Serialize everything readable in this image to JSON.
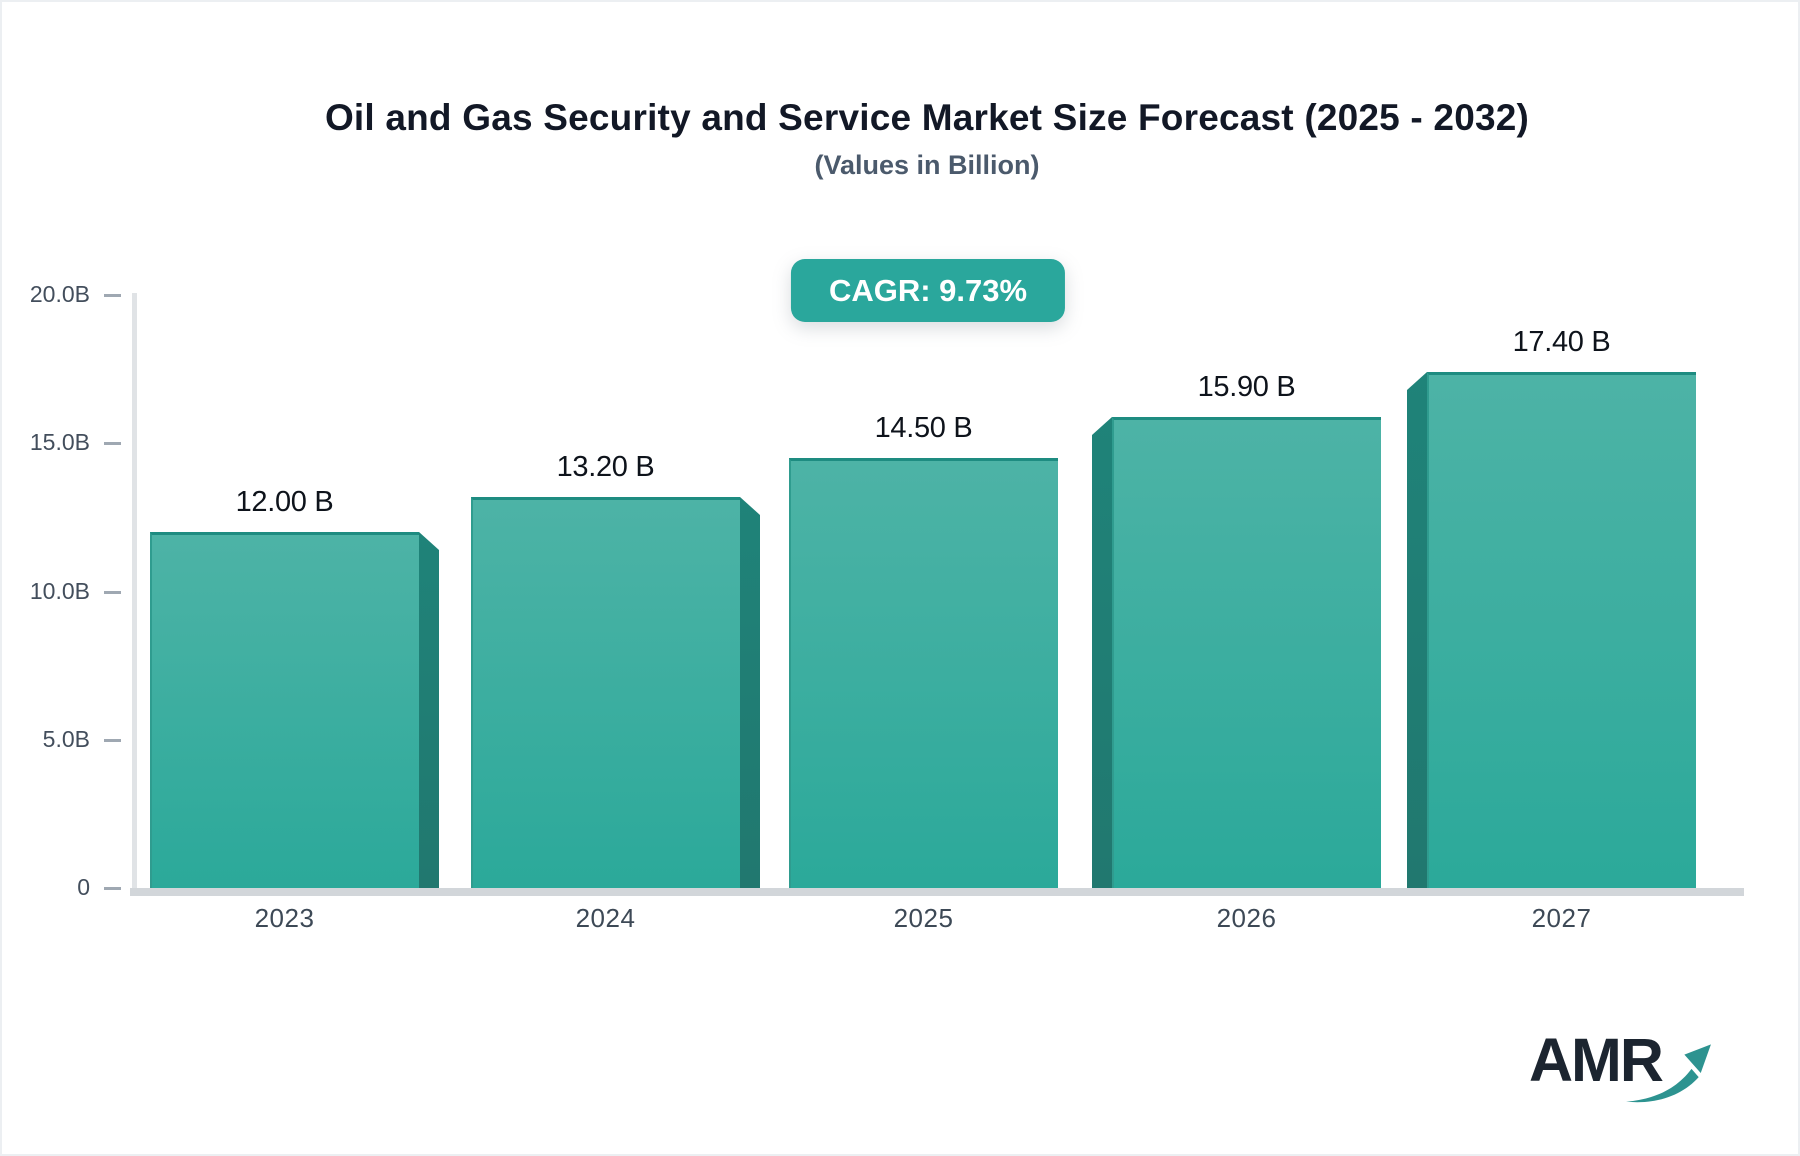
{
  "header": {
    "title": "Oil and Gas Security and Service Market Size Forecast (2025 - 2032)",
    "subtitle": "(Values in Billion)"
  },
  "badge": {
    "label": "CAGR: 9.73%",
    "background_color": "#2aa79c",
    "text_color": "#ffffff"
  },
  "chart_data": {
    "type": "bar",
    "title": "Oil and Gas Security and Service Market Size Forecast (2025 - 2032)",
    "subtitle": "(Values in Billion)",
    "categories": [
      "2023",
      "2024",
      "2025",
      "2026",
      "2027"
    ],
    "values": [
      12.0,
      13.2,
      14.5,
      15.9,
      17.4
    ],
    "value_labels": [
      "12.00 B",
      "13.20 B",
      "14.50 B",
      "15.90 B",
      "17.40 B"
    ],
    "unit": "Billion",
    "ylim": [
      0,
      20
    ],
    "yticks": [
      {
        "value": 20,
        "label": "20.0B"
      },
      {
        "value": 15,
        "label": "15.0B"
      },
      {
        "value": 10,
        "label": "10.0B"
      },
      {
        "value": 5,
        "label": "5.0B"
      },
      {
        "value": 0,
        "label": "0"
      }
    ],
    "grid": false,
    "legend": false,
    "cagr_percent": "9.73%",
    "bar_color_top": "#4db3a6",
    "bar_color_bottom": "#2ba99a",
    "bar_side_color": "#1f8379",
    "bar_top_edge_color": "#1e8c81",
    "axis_color": "#d2d6da",
    "tick_label_color": "#434e5c",
    "value_label_color": "#0e131b"
  },
  "logo": {
    "text": "AMR",
    "text_color": "#1c2530",
    "arrow_icon": "growth-arrow",
    "arrow_color": "#2d9390"
  }
}
